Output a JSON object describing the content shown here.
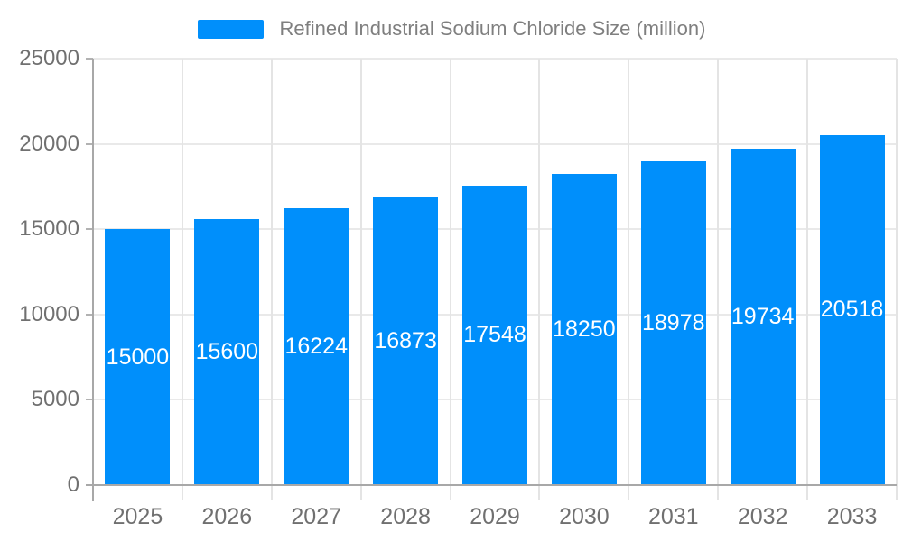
{
  "chart_data": {
    "type": "bar",
    "title": "Refined Industrial Sodium Chloride Size (million)",
    "categories": [
      "2025",
      "2026",
      "2027",
      "2028",
      "2029",
      "2030",
      "2031",
      "2032",
      "2033"
    ],
    "values": [
      15000,
      15600,
      16224,
      16873,
      17548,
      18250,
      18978,
      19734,
      20518
    ],
    "series": [
      {
        "name": "Refined Industrial Sodium Chloride Size (million)",
        "values": [
          15000,
          15600,
          16224,
          16873,
          17548,
          18250,
          18978,
          19734,
          20518
        ]
      }
    ],
    "xlabel": "",
    "ylabel": "",
    "ylim": [
      0,
      25000
    ],
    "yticks": [
      0,
      5000,
      10000,
      15000,
      20000,
      25000
    ],
    "grid": true,
    "legend_position": "top",
    "data_labels": "inside-center",
    "colors": {
      "bar": "#008FFB",
      "axis": "#a8a8a8",
      "grid": "#e7e7e7",
      "tick_label": "#707070",
      "legend_text": "#7f7f7f",
      "data_label": "#ffffff"
    }
  }
}
